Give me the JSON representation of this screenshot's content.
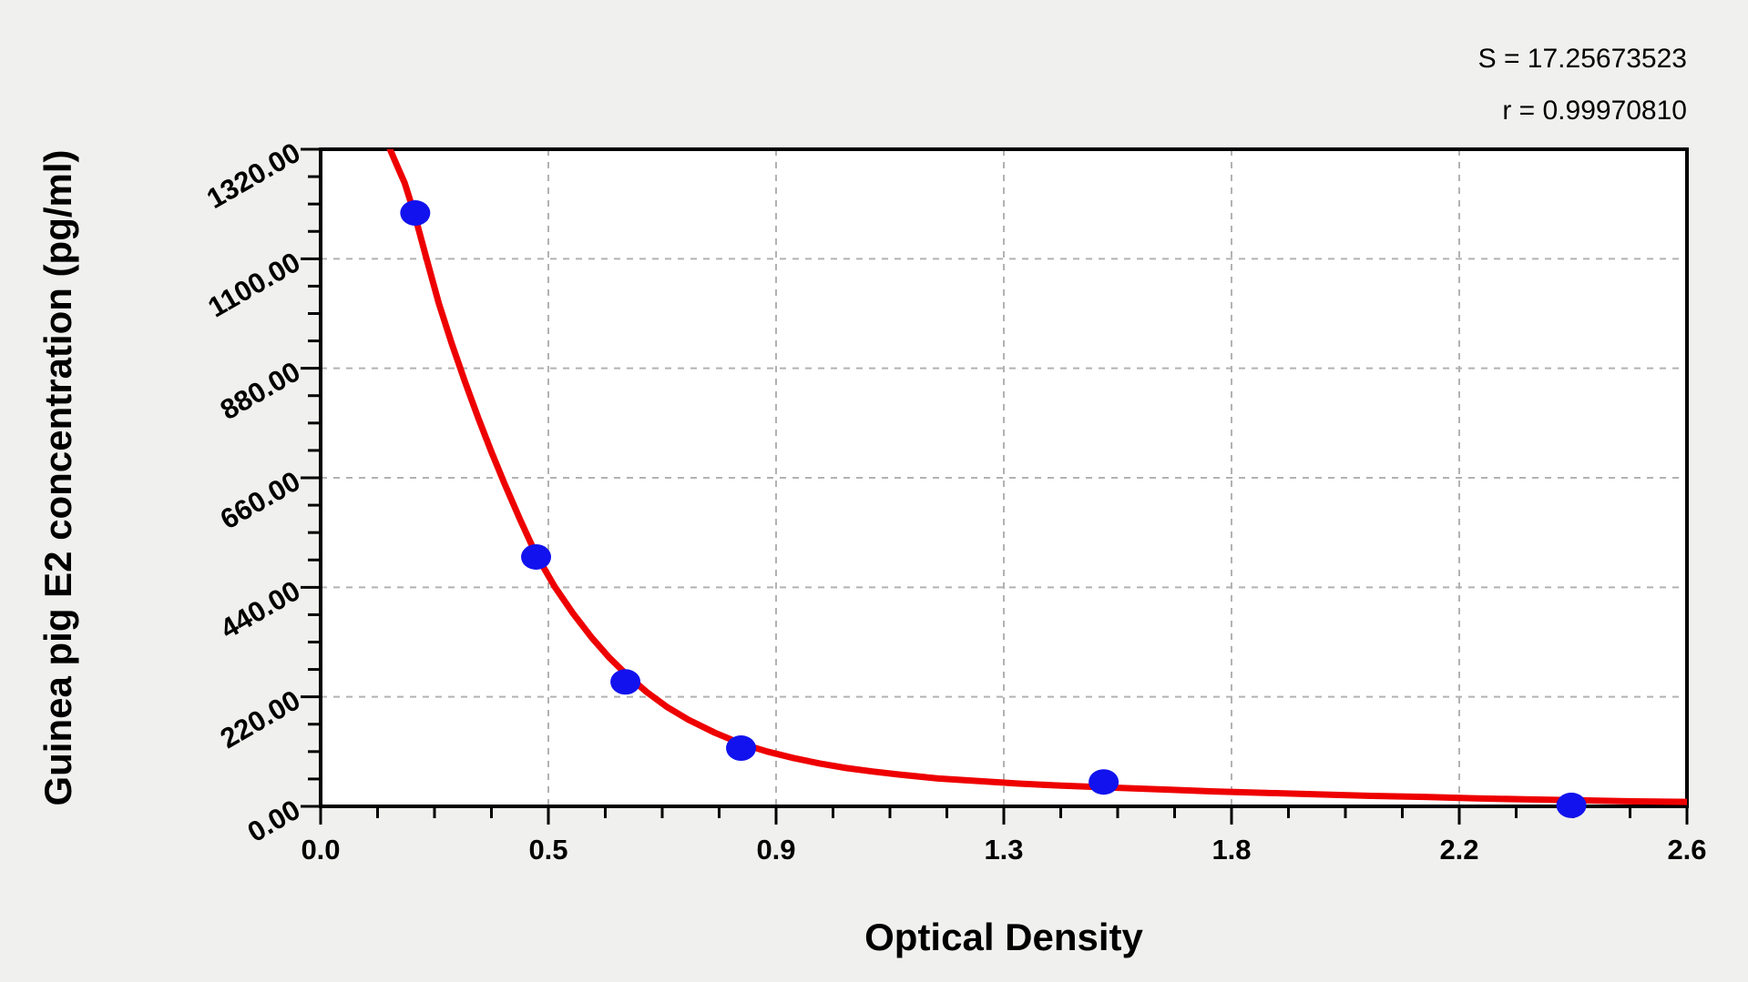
{
  "page": {
    "background": "#f0f0ee"
  },
  "stats": {
    "s_line": "S = 17.25673523",
    "r_line": "r = 0.99970810"
  },
  "chart_data": {
    "type": "scatter",
    "title": "",
    "xlabel": "Optical Density",
    "ylabel": "Guinea pig E2 concentration (pg/ml)",
    "xlim": [
      0,
      2.6
    ],
    "ylim": [
      0,
      1320
    ],
    "x_tick_labels": [
      "0.0",
      "0.5",
      "0.9",
      "1.3",
      "1.8",
      "2.2",
      "2.6"
    ],
    "y_tick_labels": [
      "0.00",
      "220.00",
      "440.00",
      "660.00",
      "880.00",
      "1100.00",
      "1320.00"
    ],
    "minor_divisions": 4,
    "grid": {
      "style": "dashed",
      "color": "#b2b2b2",
      "on_major_ticks": true
    },
    "legend": "none",
    "fit_stats": {
      "S": 17.25673523,
      "r": 0.9997081
    },
    "points": [
      {
        "x": 0.18,
        "y": 1192
      },
      {
        "x": 0.41,
        "y": 501
      },
      {
        "x": 0.58,
        "y": 250
      },
      {
        "x": 0.8,
        "y": 117
      },
      {
        "x": 1.49,
        "y": 49
      },
      {
        "x": 2.38,
        "y": 2
      }
    ],
    "curve": [
      [
        0.132,
        1320
      ],
      [
        0.145,
        1288
      ],
      [
        0.16,
        1252
      ],
      [
        0.178,
        1192
      ],
      [
        0.2,
        1106
      ],
      [
        0.225,
        1010
      ],
      [
        0.25,
        928
      ],
      [
        0.275,
        852
      ],
      [
        0.3,
        780
      ],
      [
        0.325,
        712
      ],
      [
        0.35,
        648
      ],
      [
        0.38,
        575
      ],
      [
        0.41,
        506
      ],
      [
        0.445,
        442
      ],
      [
        0.48,
        388
      ],
      [
        0.515,
        340
      ],
      [
        0.55,
        298
      ],
      [
        0.585,
        262
      ],
      [
        0.62,
        230
      ],
      [
        0.66,
        199
      ],
      [
        0.7,
        174
      ],
      [
        0.75,
        148
      ],
      [
        0.8,
        126
      ],
      [
        0.85,
        110
      ],
      [
        0.9,
        97
      ],
      [
        0.95,
        86
      ],
      [
        1.0,
        77
      ],
      [
        1.05,
        70
      ],
      [
        1.1,
        64
      ],
      [
        1.175,
        56
      ],
      [
        1.25,
        51
      ],
      [
        1.325,
        46
      ],
      [
        1.4,
        42
      ],
      [
        1.5,
        38
      ],
      [
        1.6,
        34
      ],
      [
        1.7,
        30
      ],
      [
        1.8,
        27
      ],
      [
        1.9,
        24
      ],
      [
        2.0,
        21
      ],
      [
        2.1,
        19
      ],
      [
        2.2,
        16
      ],
      [
        2.3,
        14
      ],
      [
        2.4,
        12
      ],
      [
        2.5,
        10
      ],
      [
        2.6,
        9
      ]
    ],
    "colors": {
      "curve": "#ee0000",
      "points": "#1212ee",
      "axis": "#000000",
      "plot_bg": "#ffffff",
      "text": "#000000"
    }
  }
}
